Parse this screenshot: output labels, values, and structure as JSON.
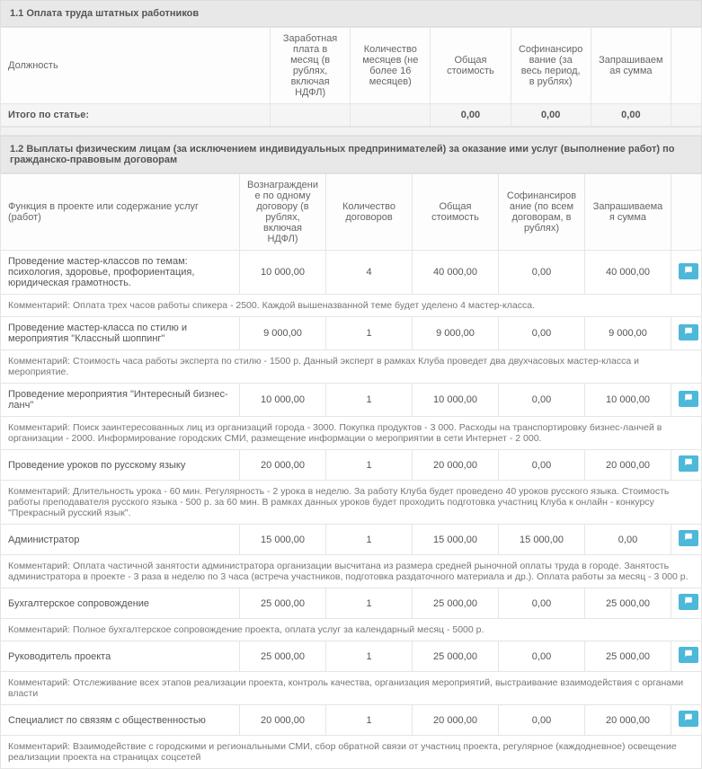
{
  "section1": {
    "title": "1.1 Оплата труда штатных работников",
    "headers": {
      "position": "Должность",
      "salary": "Заработная плата в месяц (в рублях, включая НДФЛ)",
      "months": "Количество месяцев (не более 16 месяцев)",
      "total": "Общая стоимость",
      "cofin": "Софинансирование (за весь период, в рублях)",
      "requested": "Запрашиваемая сумма"
    },
    "total_label": "Итого по статье:",
    "totals": {
      "total": "0,00",
      "cofin": "0,00",
      "requested": "0,00"
    }
  },
  "section2": {
    "title": "1.2 Выплаты физическим лицам (за исключением индивидуальных предпринимателей) за оказание ими услуг (выполнение работ) по гражданско-правовым договорам",
    "headers": {
      "func": "Функция в проекте или содержание услуг (работ)",
      "reward": "Вознаграждение по одному договору (в рублях, включая НДФЛ)",
      "count": "Количество договоров",
      "total": "Общая стоимость",
      "cofin": "Софинансирование (по всем договорам, в рублях)",
      "requested": "Запрашиваемая сумма"
    },
    "rows": [
      {
        "name": "Проведение мастер-классов по темам: психология, здоровье, профориентация, юридическая грамотность.",
        "reward": "10 000,00",
        "count": "4",
        "total": "40 000,00",
        "cofin": "0,00",
        "requested": "40 000,00",
        "comment": "Комментарий: Оплата трех часов работы спикера - 2500. Каждой вышеназванной теме будет уделено 4 мастер-класса."
      },
      {
        "name": "Проведение мастер-класса по стилю и мероприятия \"Классный шоппинг\"",
        "reward": "9 000,00",
        "count": "1",
        "total": "9 000,00",
        "cofin": "0,00",
        "requested": "9 000,00",
        "comment": "Комментарий: Стоимость часа работы эксперта по стилю - 1500 р. Данный эксперт в рамках Клуба проведет два двухчасовых мастер-класса и мероприятие."
      },
      {
        "name": "Проведение мероприятия \"Интересный бизнес-ланч\"",
        "reward": "10 000,00",
        "count": "1",
        "total": "10 000,00",
        "cofin": "0,00",
        "requested": "10 000,00",
        "comment": "Комментарий: Поиск заинтересованных лиц из организаций города - 3000. Покупка продуктов - 3 000. Расходы на транспортировку бизнес-ланчей в организации - 2000. Информирование городских СМИ, размещение информации о мероприятии в сети Интернет - 2 000."
      },
      {
        "name": "Проведение уроков по русскому языку",
        "reward": "20 000,00",
        "count": "1",
        "total": "20 000,00",
        "cofin": "0,00",
        "requested": "20 000,00",
        "comment": "Комментарий: Длительность урока - 60 мин. Регулярность - 2 урока в неделю. За работу Клуба будет проведено 40 уроков русского языка. Стоимость работы преподавателя русского языка - 500 р. за 60 мин. В рамках данных уроков будет проходить подготовка участниц Клуба к онлайн - конкурсу \"Прекрасный русский язык\"."
      },
      {
        "name": "Администратор",
        "reward": "15 000,00",
        "count": "1",
        "total": "15 000,00",
        "cofin": "15 000,00",
        "requested": "0,00",
        "comment": "Комментарий: Оплата частичной занятости администратора организации высчитана из размера средней рыночной оплаты труда в городе. Занятость администратора в проекте - 3 раза в неделю по 3 часа (встреча участников, подготовка раздаточного материала и др.). Оплата работы за месяц - 3 000 р."
      },
      {
        "name": "Бухгалтерское сопровождение",
        "reward": "25 000,00",
        "count": "1",
        "total": "25 000,00",
        "cofin": "0,00",
        "requested": "25 000,00",
        "comment": "Комментарий: Полное бухгалтерское сопровождение проекта, оплата услуг за календарный месяц - 5000 р."
      },
      {
        "name": "Руководитель проекта",
        "reward": "25 000,00",
        "count": "1",
        "total": "25 000,00",
        "cofin": "0,00",
        "requested": "25 000,00",
        "comment": "Комментарий: Отслеживание всех этапов реализации проекта, контроль качества, организация мероприятий, выстраивание взаимодействия с органами власти"
      },
      {
        "name": "Специалист по связям с общественностью",
        "reward": "20 000,00",
        "count": "1",
        "total": "20 000,00",
        "cofin": "0,00",
        "requested": "20 000,00",
        "comment": "Комментарий: Взаимодействие с городскими и региональными СМИ, сбор обратной связи от участниц проекта, регулярное (каждодневное) освещение реализации проекта на страницах соцсетей"
      }
    ]
  },
  "colors": {
    "comment_btn": "#4db8d8"
  }
}
